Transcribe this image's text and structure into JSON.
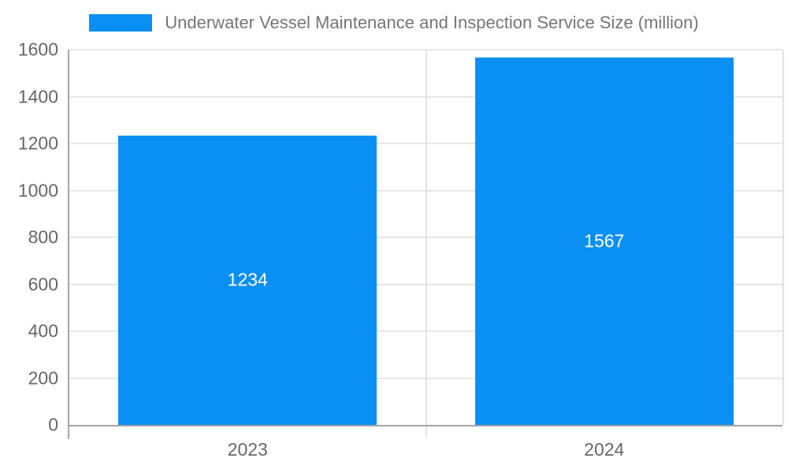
{
  "legend": {
    "label": "Underwater Vessel Maintenance and Inspection Service Size (million)"
  },
  "colors": {
    "bar": "#0a90f5",
    "gridline": "#e6e6e6",
    "axis_line": "#a5a5a5",
    "separator_line": "#e3e3e3",
    "tick_text": "#666666",
    "legend_text": "#757575",
    "bar_value_text": "#ffffff",
    "background": "#ffffff"
  },
  "chart_data": {
    "type": "bar",
    "categories": [
      "2023",
      "2024"
    ],
    "values": [
      1234,
      1567
    ],
    "series_name": "Underwater Vessel Maintenance and Inspection Service Size (million)",
    "bar_labels": [
      "1234",
      "1567"
    ],
    "title": "",
    "xlabel": "",
    "ylabel": "",
    "ylim": [
      0,
      1600
    ],
    "y_ticks": [
      0,
      200,
      400,
      600,
      800,
      1000,
      1200,
      1400,
      1600
    ],
    "grid": true,
    "legend_position": "top-center",
    "bar_label_position": "center"
  }
}
